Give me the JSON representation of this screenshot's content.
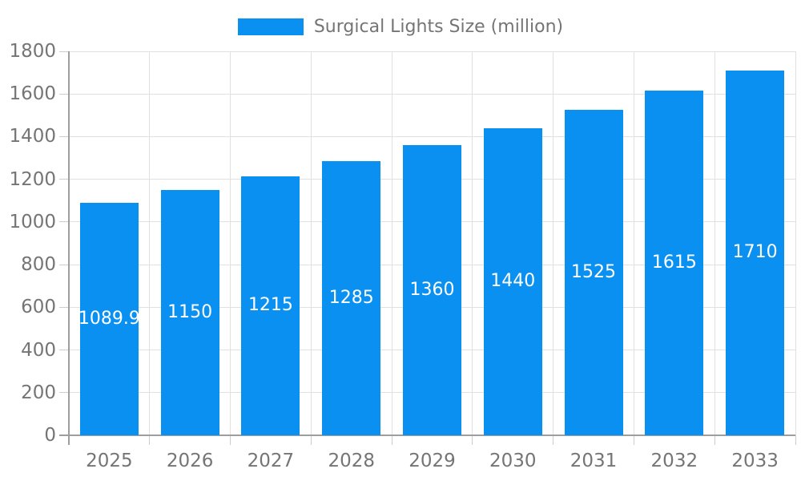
{
  "chart_data": {
    "type": "bar",
    "title": "",
    "legend": "Surgical Lights Size (million)",
    "legend_position": "top-center",
    "categories": [
      "2025",
      "2026",
      "2027",
      "2028",
      "2029",
      "2030",
      "2031",
      "2032",
      "2033"
    ],
    "values": [
      1089.9,
      1150,
      1215,
      1285,
      1360,
      1440,
      1525,
      1615,
      1710
    ],
    "bar_labels": [
      "1089.9",
      "1150",
      "1215",
      "1285",
      "1360",
      "1440",
      "1525",
      "1615",
      "1710"
    ],
    "xlabel": "",
    "ylabel": "",
    "ylim": [
      0,
      1800
    ],
    "ytick_step": 200,
    "ytick_labels": [
      "0",
      "200",
      "400",
      "600",
      "800",
      "1000",
      "1200",
      "1400",
      "1600",
      "1800"
    ],
    "grid": true,
    "colors": {
      "bar": "#0a90f1",
      "label_text": "#ffffff",
      "tick_text": "#757575",
      "axis": "#9e9e9e",
      "grid": "#e0e0e0",
      "tick_line": "#cccccc",
      "background": "#ffffff"
    }
  }
}
